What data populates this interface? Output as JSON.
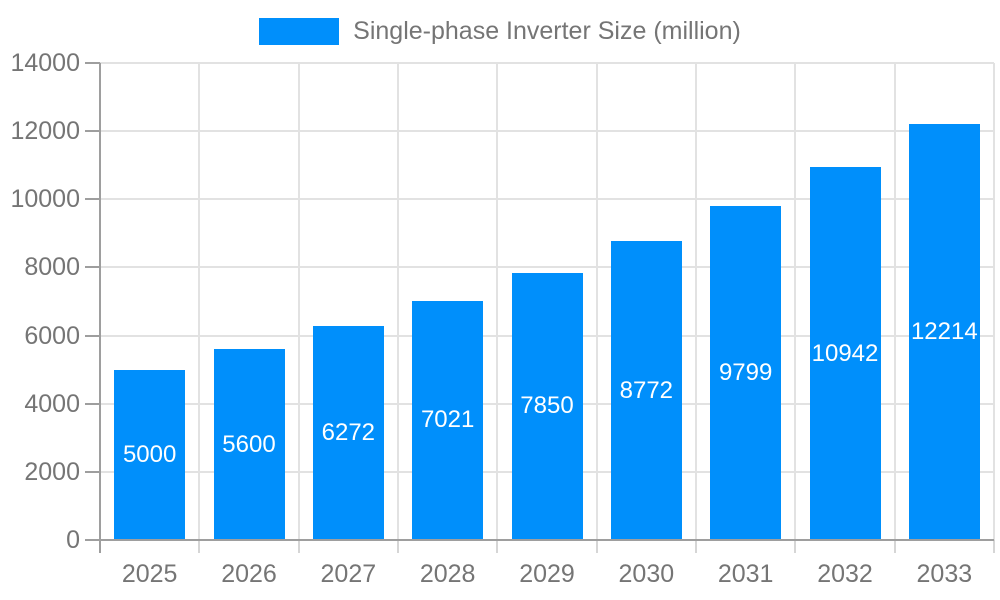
{
  "legend": {
    "label": "Single-phase Inverter Size (million)"
  },
  "chart_data": {
    "type": "bar",
    "title": "",
    "categories": [
      "2025",
      "2026",
      "2027",
      "2028",
      "2029",
      "2030",
      "2031",
      "2032",
      "2033"
    ],
    "series": [
      {
        "name": "Single-phase Inverter Size (million)",
        "values": [
          5000,
          5600,
          6272,
          7021,
          7850,
          8772,
          9799,
          10942,
          12214
        ]
      }
    ],
    "value_labels": [
      5000,
      5600,
      6272,
      7021,
      7850,
      8772,
      9799,
      10942,
      12214
    ],
    "xlabel": "",
    "ylabel": "",
    "ylim": [
      0,
      14000
    ],
    "yticks": [
      0,
      2000,
      4000,
      6000,
      8000,
      10000,
      12000,
      14000
    ],
    "grid": true,
    "legend_position": "top",
    "value_label_position": "inside-center",
    "colors": {
      "bar": "#008FFB",
      "grid": "#e2e2e2",
      "axis": "#9e9e9e",
      "x_tick": "#d6d6d6",
      "y_tick": "#9e9e9e",
      "text": "#757575",
      "value_label": "#ffffff",
      "background": "#ffffff"
    }
  }
}
